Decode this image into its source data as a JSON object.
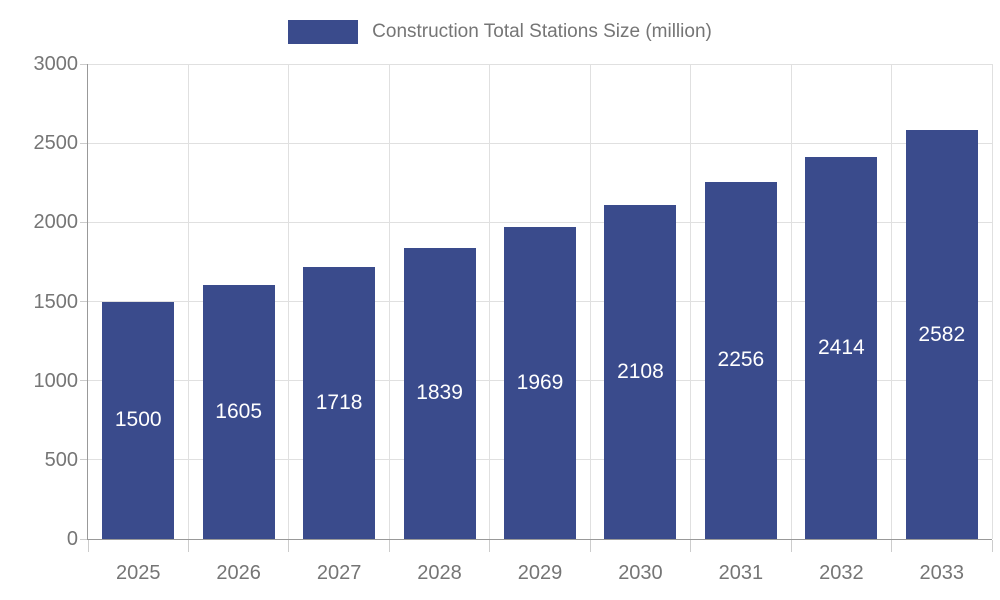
{
  "legend": {
    "label": "Construction Total Stations Size (million)"
  },
  "chart_data": {
    "type": "bar",
    "title": "",
    "series_name": "Construction Total Stations Size (million)",
    "categories": [
      "2025",
      "2026",
      "2027",
      "2028",
      "2029",
      "2030",
      "2031",
      "2032",
      "2033"
    ],
    "values": [
      1500,
      1605,
      1718,
      1839,
      1969,
      2108,
      2256,
      2414,
      2582
    ],
    "value_labels": [
      "1500",
      "1605",
      "1718",
      "1839",
      "1969",
      "2108",
      "2256",
      "2414",
      "2582"
    ],
    "value_label_position": "inside-center",
    "xlabel": "",
    "ylabel": "",
    "ylim": [
      0,
      3000
    ],
    "y_ticks": [
      0,
      500,
      1000,
      1500,
      2000,
      2500,
      3000
    ],
    "grid": true,
    "legend_position": "top-center",
    "colors": {
      "bar": "#3A4B8C",
      "value_label": "#ffffff",
      "gridline": "#e0e0e0",
      "axis_line": "#999999",
      "tick_mark": "#cccccc",
      "tick_label": "#757575"
    }
  }
}
